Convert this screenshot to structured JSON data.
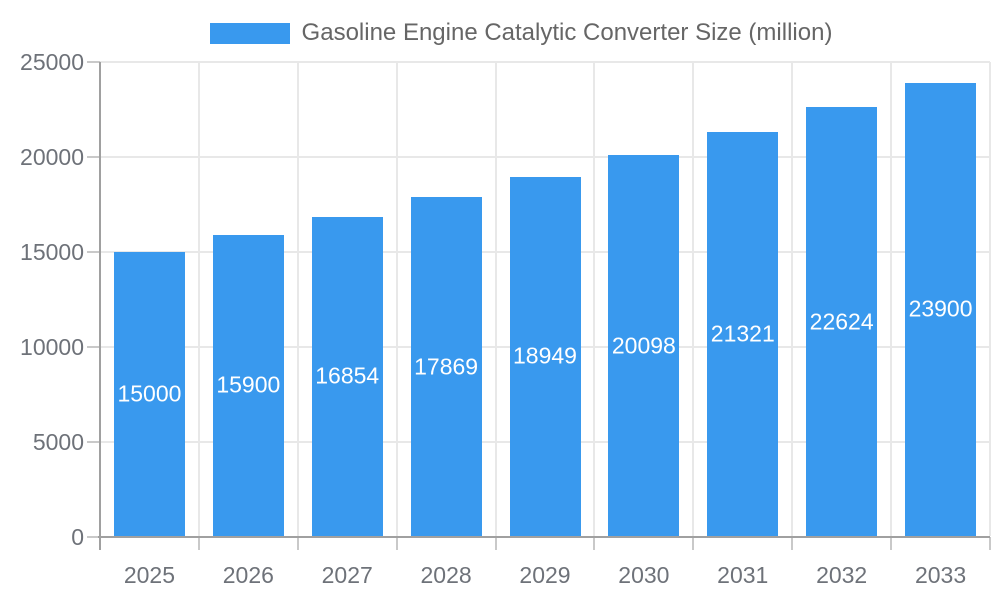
{
  "legend": {
    "label": "Gasoline Engine Catalytic Converter Size (million)"
  },
  "colors": {
    "bar": "#3999EE",
    "grid": "#E8E8E8",
    "axis": "#A0A0A0",
    "tick": "#C9C9C9",
    "axis_label_text": "#6E7279",
    "legend_text": "#666666",
    "value_label_text": "#FFFFFF",
    "background": "#FFFFFF"
  },
  "chart_data": {
    "type": "bar",
    "title": "Gasoline Engine Catalytic Converter Size (million)",
    "categories": [
      "2025",
      "2026",
      "2027",
      "2028",
      "2029",
      "2030",
      "2031",
      "2032",
      "2033"
    ],
    "series": [
      {
        "name": "Gasoline Engine Catalytic Converter Size (million)",
        "values": [
          15000,
          15900,
          16854,
          17869,
          18949,
          20098,
          21321,
          22624,
          23900
        ]
      }
    ],
    "value_labels": [
      15000,
      15900,
      16854,
      17869,
      18949,
      20098,
      21321,
      22624,
      23900
    ],
    "xlabel": "",
    "ylabel": "",
    "ylim": [
      0,
      25000
    ],
    "ytick_step": 5000,
    "ytick_labels": [
      "0",
      "5000",
      "10000",
      "15000",
      "20000",
      "25000"
    ],
    "grid": true,
    "legend_position": "top",
    "value_label_position": "inside-center"
  }
}
